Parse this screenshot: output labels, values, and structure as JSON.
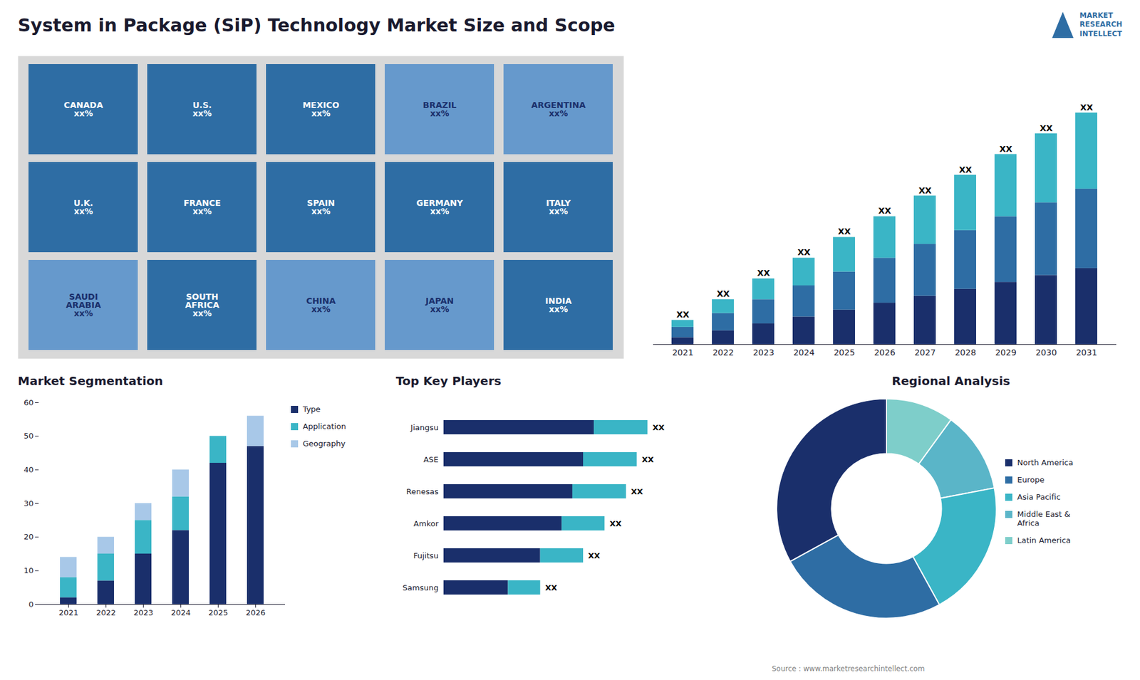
{
  "chart_data": [
    {
      "type": "bar",
      "title": "System in Package (SiP) Technology Market Size and Scope",
      "stacked": true,
      "categories": [
        "2021",
        "2022",
        "2023",
        "2024",
        "2025",
        "2026",
        "2027",
        "2028",
        "2029",
        "2030",
        "2031"
      ],
      "series": [
        {
          "color": "#1a2f6b",
          "values": [
            1,
            2,
            3,
            4,
            5,
            6,
            7,
            8,
            9,
            10,
            11
          ]
        },
        {
          "color": "#2e6da4",
          "values": [
            1.5,
            2.5,
            3.5,
            4.5,
            5.5,
            6.5,
            7.5,
            8.5,
            9.5,
            10.5,
            11.5
          ]
        },
        {
          "color": "#3ab5c6",
          "values": [
            1,
            2,
            3,
            4,
            5,
            6,
            7,
            8,
            9,
            10,
            11
          ]
        }
      ],
      "data_labels": true,
      "value_labels": [
        "XX",
        "XX",
        "XX",
        "XX",
        "XX",
        "XX",
        "XX",
        "XX",
        "XX",
        "XX",
        "XX"
      ],
      "ylim": [
        0,
        40
      ],
      "tick_labels": "x",
      "annotations": [
        "MARKET\nRESEARCH\nINTELLECT",
        "Source : www.marketresearchintellect.com"
      ]
    },
    {
      "type": "map",
      "categories": [
        "CANADA",
        "U.S.",
        "MEXICO",
        "BRAZIL",
        "ARGENTINA",
        "U.K.",
        "FRANCE",
        "SPAIN",
        "GERMANY",
        "ITALY",
        "SAUDI\nARABIA",
        "SOUTH\nAFRICA",
        "CHINA",
        "JAPAN",
        "INDIA"
      ],
      "value_labels": [
        "xx%",
        "xx%",
        "xx%",
        "xx%",
        "xx%",
        "xx%",
        "xx%",
        "xx%",
        "xx%",
        "xx%",
        "xx%",
        "xx%",
        "xx%",
        "xx%",
        "xx%"
      ],
      "colors": [
        "#2e6da4",
        "#2e6da4",
        "#2e6da4",
        "#6699cc",
        "#6699cc",
        "#2e6da4",
        "#2e6da4",
        "#2e6da4",
        "#2e6da4",
        "#2e6da4",
        "#6699cc",
        "#2e6da4",
        "#6699cc",
        "#6699cc",
        "#2e6da4"
      ]
    },
    {
      "type": "bar",
      "title": "Market Segmentation",
      "stacked": true,
      "categories": [
        "2021",
        "2022",
        "2023",
        "2024",
        "2025",
        "2026"
      ],
      "series": [
        {
          "name": "Type",
          "color": "#1a2f6b",
          "values": [
            2,
            7,
            15,
            22,
            42,
            47
          ]
        },
        {
          "name": "Application",
          "color": "#3ab5c6",
          "values": [
            6,
            8,
            10,
            10,
            8,
            0
          ]
        },
        {
          "name": "Geography",
          "color": "#a8c8e8",
          "values": [
            6,
            5,
            5,
            8,
            0,
            9
          ]
        }
      ],
      "ylim": [
        0,
        60
      ],
      "yticks": [
        0,
        10,
        20,
        30,
        40,
        50,
        60
      ],
      "legend": "right"
    },
    {
      "type": "bar",
      "title": "Top Key Players",
      "orientation": "horizontal",
      "stacked": true,
      "categories": [
        "Jiangsu",
        "ASE",
        "Renesas",
        "Amkor",
        "Fujitsu",
        "Samsung"
      ],
      "series": [
        {
          "color": "#1a2f6b",
          "values": [
            7,
            6.5,
            6,
            5.5,
            4.5,
            3
          ]
        },
        {
          "color": "#3ab5c6",
          "values": [
            2.5,
            2.5,
            2.5,
            2,
            2,
            1.5
          ]
        }
      ],
      "data_labels": true,
      "value_labels": [
        "XX",
        "XX",
        "XX",
        "XX",
        "XX",
        "XX"
      ],
      "xlim": [
        0,
        13
      ],
      "tick_labels": "y"
    },
    {
      "type": "pie",
      "title": "Regional Analysis",
      "categories": [
        "Latin America",
        "Middle East &\nAfrica",
        "Asia Pacific",
        "Europe",
        "North America"
      ],
      "values": [
        10,
        12,
        20,
        25,
        33
      ],
      "colors": [
        "#7ececa",
        "#5ab5c8",
        "#3ab5c6",
        "#2e6da4",
        "#1a2f6b"
      ],
      "legend": "right"
    }
  ]
}
